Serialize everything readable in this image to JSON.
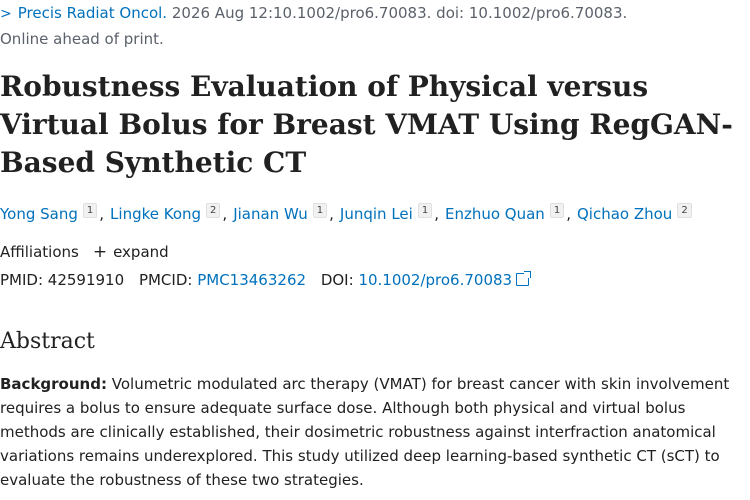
{
  "citation": {
    "journal": "Precis Radiat Oncol.",
    "details": "2026 Aug 12:10.1002/pro6.70083. doi: 10.1002/pro6.70083.",
    "status": "Online ahead of print."
  },
  "article": {
    "title": "Robustness Evaluation of Physical versus Virtual Bolus for Breast VMAT Using RegGAN-Based Synthetic CT"
  },
  "authors": [
    {
      "name": "Yong Sang",
      "aff": "1"
    },
    {
      "name": "Lingke Kong",
      "aff": "2"
    },
    {
      "name": "Jianan Wu",
      "aff": "1"
    },
    {
      "name": "Junqin Lei",
      "aff": "1"
    },
    {
      "name": "Enzhuo Quan",
      "aff": "1"
    },
    {
      "name": "Qichao Zhou",
      "aff": "2"
    }
  ],
  "affiliations": {
    "label": "Affiliations",
    "expand_label": "expand"
  },
  "identifiers": {
    "pmid_label": "PMID:",
    "pmid": "42591910",
    "pmcid_label": "PMCID:",
    "pmcid": "PMC13463262",
    "doi_label": "DOI:",
    "doi": "10.1002/pro6.70083"
  },
  "abstract": {
    "heading": "Abstract",
    "background_label": "Background:",
    "background_text": "Volumetric modulated arc therapy (VMAT) for breast cancer with skin involvement requires a bolus to ensure adequate surface dose. Although both physical and virtual bolus methods are clinically established, their dosimetric robustness against interfraction anatomical variations remains underexplored. This study utilized deep learning-based synthetic CT (sCT) to evaluate the robustness of these two strategies."
  },
  "colors": {
    "link": "#0071bc",
    "text": "#212121",
    "muted": "#5b616b"
  },
  "icons": [
    "chevron-right-icon",
    "plus-icon",
    "external-link-icon"
  ]
}
